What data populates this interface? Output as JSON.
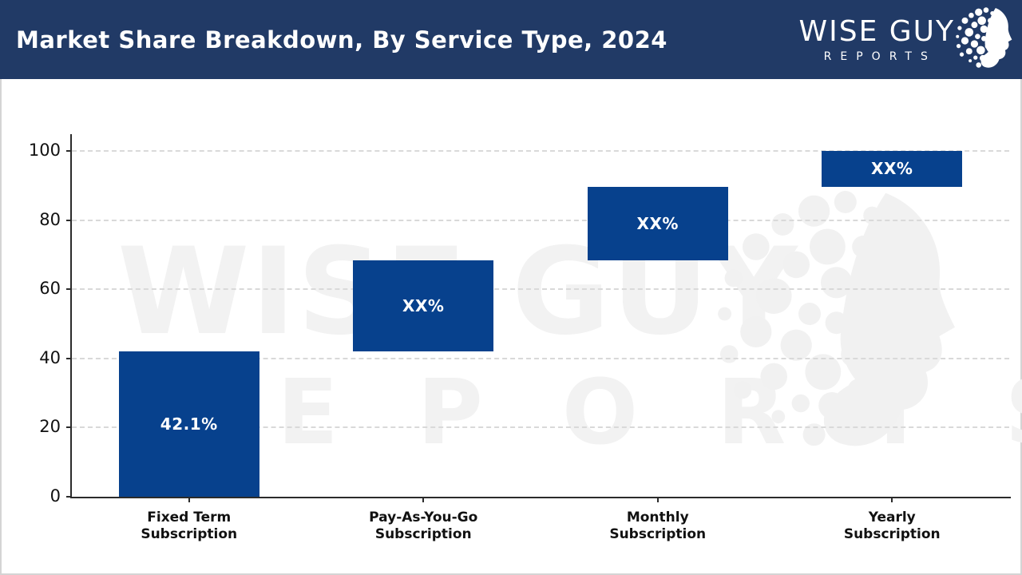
{
  "header": {
    "title": "Market Share Breakdown, By Service Type, 2024",
    "logo": {
      "line1": "WISE GUY",
      "line2": "REPORTS"
    }
  },
  "watermark": {
    "line1": "WISE GUY",
    "line2": "R E P O R T S"
  },
  "colors": {
    "header_bg": "#213a66",
    "bar": "#07418d",
    "grid": "#d9d9d9",
    "axis": "#2b2b2b",
    "tick_text": "#111111",
    "bar_label": "#ffffff",
    "watermark": "#f2f2f2",
    "panel_border": "#d4d4d4"
  },
  "chart_data": {
    "type": "bar",
    "subtype": "waterfall",
    "title": "Market Share Breakdown, By Service Type, 2024",
    "categories": [
      "Fixed Term\nSubscription",
      "Pay-As-You-Go\nSubscription",
      "Monthly\nSubscription",
      "Yearly\nSubscription"
    ],
    "segments": [
      {
        "start": 0,
        "end": 42.1,
        "label": "42.1%"
      },
      {
        "start": 42.1,
        "end": 68.4,
        "label": "XX%"
      },
      {
        "start": 68.4,
        "end": 89.7,
        "label": "XX%"
      },
      {
        "start": 89.7,
        "end": 100,
        "label": "XX%"
      }
    ],
    "xlabel": "",
    "ylabel": "",
    "ylim": [
      0,
      100
    ],
    "yticks": [
      0,
      20,
      40,
      60,
      80,
      100
    ],
    "grid": "horizontal-dashed",
    "legend": "none"
  }
}
